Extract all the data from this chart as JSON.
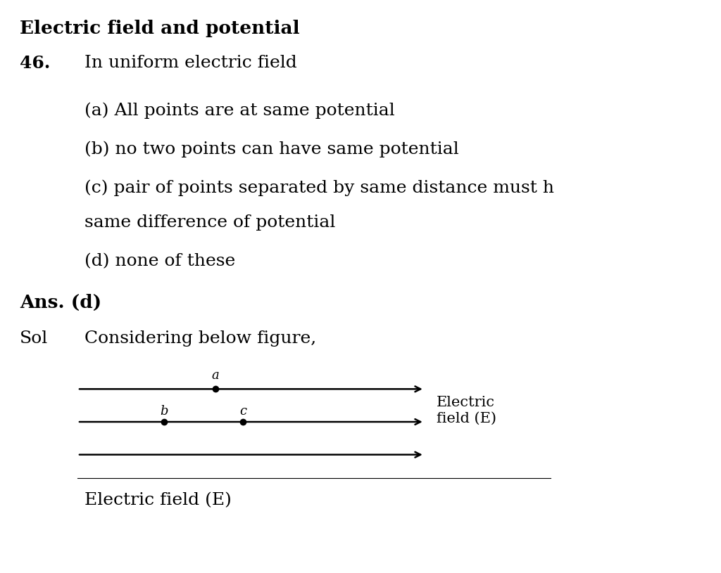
{
  "title": "Electric field and potential",
  "question_num": "46.",
  "question_text": "In uniform electric field",
  "opt_a": "(a) All points are at same potential",
  "opt_b": "(b) no two points can have same potential",
  "opt_c1": "(c) pair of points separated by same distance must h",
  "opt_c2": "same difference of potential",
  "opt_d": "(d) none of these",
  "ans_label": "Ans. (d)",
  "sol_label": "Sol",
  "sol_text": "Considering below figure,",
  "fig_caption": "Electric field (E)",
  "arrow_label_1": "Electric",
  "arrow_label_2": "field (E)",
  "label_a": "a",
  "label_b": "b",
  "label_c": "c",
  "background_color": "#ffffff",
  "text_color": "#000000",
  "title_fontsize": 19,
  "body_fontsize": 18,
  "ans_fontsize": 19,
  "fig_label_fontsize": 15,
  "point_label_fontsize": 13
}
